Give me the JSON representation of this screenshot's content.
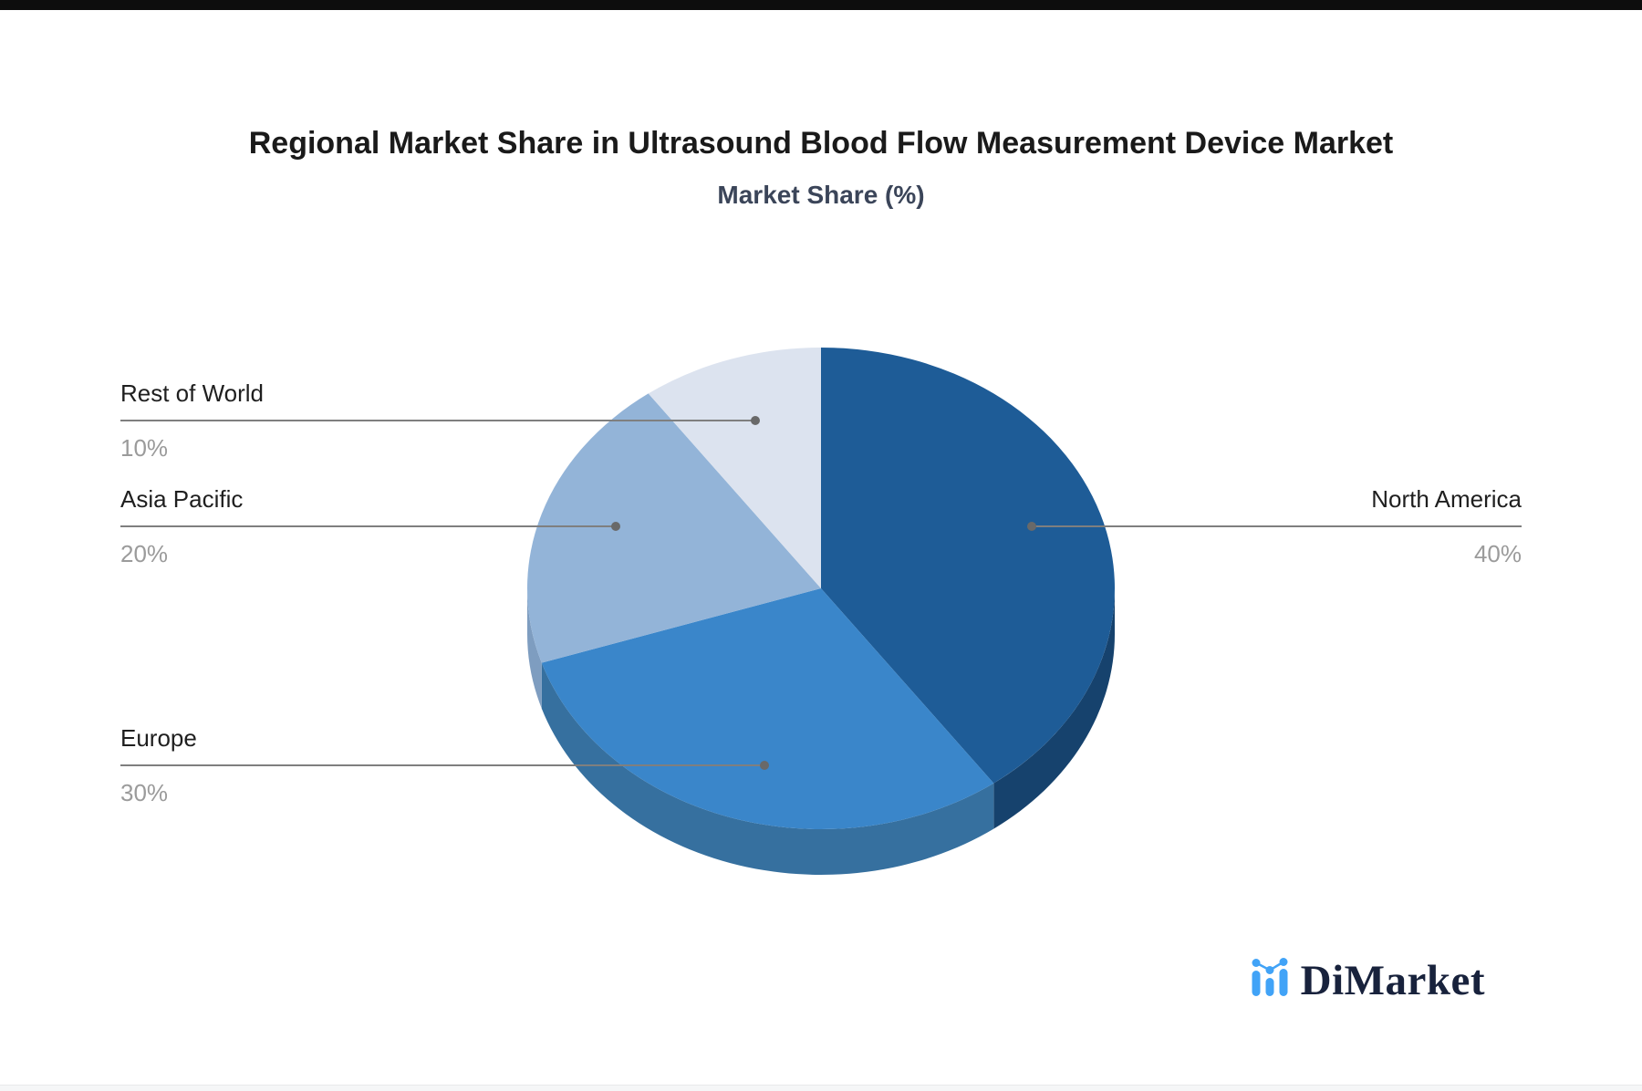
{
  "chart_data": {
    "type": "pie",
    "style": "3d",
    "title": "Regional Market Share in Ultrasound Blood Flow Measurement Device Market",
    "subtitle": "Market Share (%)",
    "unit": "%",
    "start_angle_deg": 0,
    "direction": "clockwise",
    "legend_position": "callout-labels",
    "slices": [
      {
        "label": "North America",
        "value": 40,
        "value_label": "40%",
        "color": "#1E5C97",
        "side_color": "#16426D",
        "callout_side": "right"
      },
      {
        "label": "Europe",
        "value": 30,
        "value_label": "30%",
        "color": "#3A86CA",
        "side_color": "#36709F",
        "callout_side": "left"
      },
      {
        "label": "Asia Pacific",
        "value": 20,
        "value_label": "20%",
        "color": "#93B4D8",
        "side_color": "#7E9DC0",
        "callout_side": "left"
      },
      {
        "label": "Rest of World",
        "value": 10,
        "value_label": "10%",
        "color": "#DCE3EF",
        "side_color": "#B9C6D8",
        "callout_side": "left"
      }
    ],
    "label_text_color": "#1F1F1F",
    "value_text_color": "#9B9B9B",
    "leader_line_color": "#7F7F7F",
    "leader_dot_color": "#696969"
  },
  "logo": {
    "text": "DiMarket",
    "icon": "bar-line-chart-icon",
    "icon_color": "#41A3F7",
    "text_color": "#18223C"
  }
}
